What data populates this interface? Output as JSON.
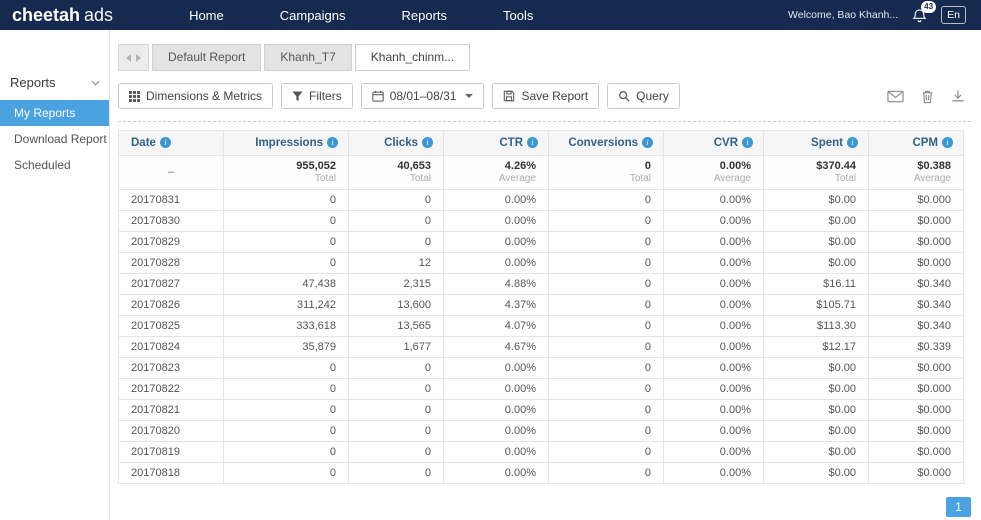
{
  "navbar": {
    "brand_bold": "cheetah",
    "brand_light": "ads",
    "items": [
      {
        "label": "Home"
      },
      {
        "label": "Campaigns"
      },
      {
        "label": "Reports"
      },
      {
        "label": "Tools"
      }
    ],
    "welcome": "Welcome,  Bao Khanh...",
    "notification_count": "43",
    "language": "En"
  },
  "sidebar": {
    "section": "Reports",
    "items": [
      {
        "label": "My Reports",
        "active": true
      },
      {
        "label": "Download Report",
        "active": false
      },
      {
        "label": "Scheduled",
        "active": false
      }
    ]
  },
  "tabs": [
    {
      "label": "Default Report",
      "active": false
    },
    {
      "label": "Khanh_T7",
      "active": false
    },
    {
      "label": "Khanh_chinm...",
      "active": true
    }
  ],
  "toolbar": {
    "dimensions_metrics_label": "Dimensions & Metrics",
    "filters_label": "Filters",
    "date_range_label": "08/01–08/31",
    "save_report_label": "Save Report",
    "query_label": "Query"
  },
  "table": {
    "columns": [
      "Date",
      "Impressions",
      "Clicks",
      "CTR",
      "Conversions",
      "CVR",
      "Spent",
      "CPM"
    ],
    "summary": {
      "date": "–",
      "values": [
        "955,052",
        "40,653",
        "4.26%",
        "0",
        "0.00%",
        "$370.44",
        "$0.388"
      ],
      "sublabels": [
        "Total",
        "Total",
        "Average",
        "Total",
        "Average",
        "Total",
        "Average"
      ]
    },
    "rows": [
      [
        "20170831",
        "0",
        "0",
        "0.00%",
        "0",
        "0.00%",
        "$0.00",
        "$0.000"
      ],
      [
        "20170830",
        "0",
        "0",
        "0.00%",
        "0",
        "0.00%",
        "$0.00",
        "$0.000"
      ],
      [
        "20170829",
        "0",
        "0",
        "0.00%",
        "0",
        "0.00%",
        "$0.00",
        "$0.000"
      ],
      [
        "20170828",
        "0",
        "12",
        "0.00%",
        "0",
        "0.00%",
        "$0.00",
        "$0.000"
      ],
      [
        "20170827",
        "47,438",
        "2,315",
        "4.88%",
        "0",
        "0.00%",
        "$16.11",
        "$0.340"
      ],
      [
        "20170826",
        "311,242",
        "13,600",
        "4.37%",
        "0",
        "0.00%",
        "$105.71",
        "$0.340"
      ],
      [
        "20170825",
        "333,618",
        "13,565",
        "4.07%",
        "0",
        "0.00%",
        "$113.30",
        "$0.340"
      ],
      [
        "20170824",
        "35,879",
        "1,677",
        "4.67%",
        "0",
        "0.00%",
        "$12.17",
        "$0.339"
      ],
      [
        "20170823",
        "0",
        "0",
        "0.00%",
        "0",
        "0.00%",
        "$0.00",
        "$0.000"
      ],
      [
        "20170822",
        "0",
        "0",
        "0.00%",
        "0",
        "0.00%",
        "$0.00",
        "$0.000"
      ],
      [
        "20170821",
        "0",
        "0",
        "0.00%",
        "0",
        "0.00%",
        "$0.00",
        "$0.000"
      ],
      [
        "20170820",
        "0",
        "0",
        "0.00%",
        "0",
        "0.00%",
        "$0.00",
        "$0.000"
      ],
      [
        "20170819",
        "0",
        "0",
        "0.00%",
        "0",
        "0.00%",
        "$0.00",
        "$0.000"
      ],
      [
        "20170818",
        "0",
        "0",
        "0.00%",
        "0",
        "0.00%",
        "$0.00",
        "$0.000"
      ]
    ]
  },
  "pagination": {
    "page": "1"
  }
}
